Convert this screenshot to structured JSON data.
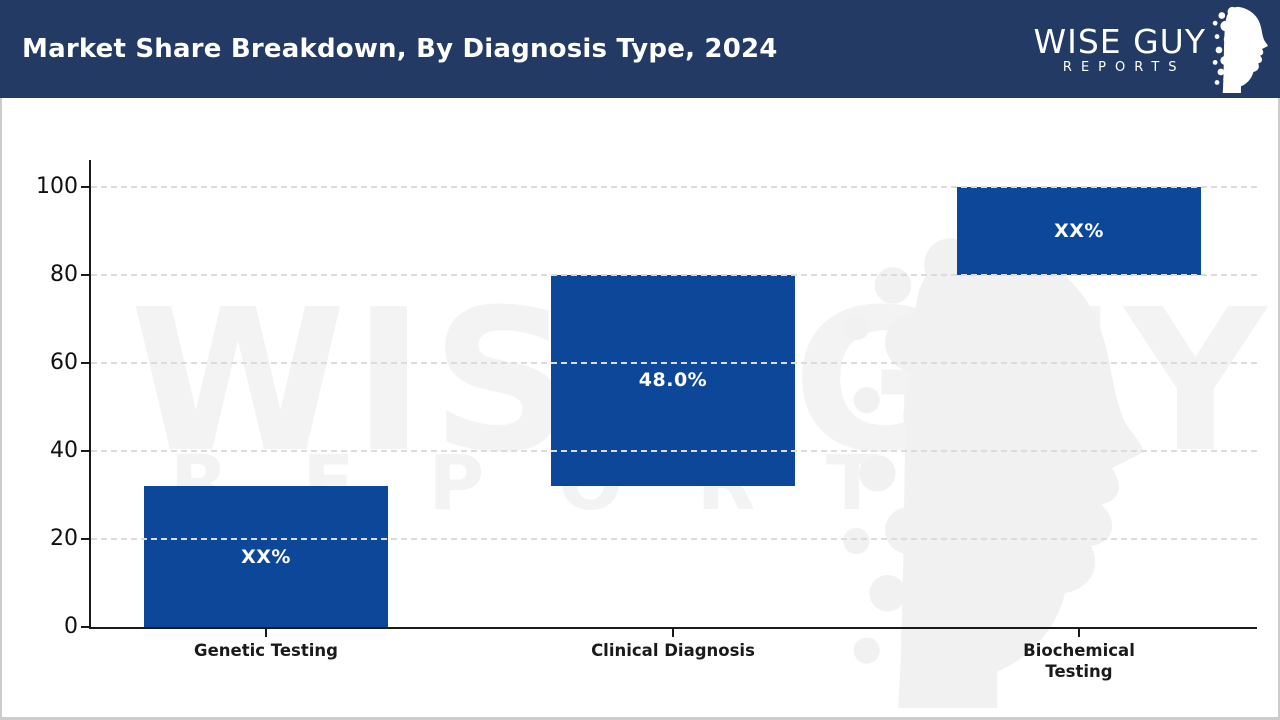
{
  "header": {
    "title": "Market Share Breakdown, By Diagnosis Type, 2024",
    "logo": {
      "name": "WISE GUY",
      "subtitle": "REPORTS"
    }
  },
  "watermark": {
    "word": "WISE GUY",
    "subtitle": "REPORTS"
  },
  "colors": {
    "header_bg": "#223a64",
    "bar_blue": "#0d4799",
    "grid": "#dcdcdc",
    "axis": "#1a1a1a",
    "bar_label": "#ffffff",
    "watermark": "#f3f3f3"
  },
  "chart_data": {
    "type": "bar",
    "variant": "floating-segment (waterfall style)",
    "title": "Market Share Breakdown, By Diagnosis Type, 2024",
    "categories": [
      "Genetic Testing",
      "Clinical Diagnosis",
      "Biochemical Testing"
    ],
    "bars": [
      {
        "category": "Genetic Testing",
        "start": 0,
        "end": 32,
        "label": "XX%"
      },
      {
        "category": "Clinical Diagnosis",
        "start": 32,
        "end": 80,
        "label": "48.0%"
      },
      {
        "category": "Biochemical Testing",
        "start": 80,
        "end": 100,
        "label": "XX%"
      }
    ],
    "xlabel": "",
    "ylabel": "",
    "yticks": [
      0,
      20,
      40,
      60,
      80,
      100
    ],
    "ylim": [
      0,
      105
    ],
    "grid": "horizontal dashed, drawn over bars",
    "legend": "none",
    "bar_color": "#0d4799",
    "value_label_color": "#ffffff"
  }
}
